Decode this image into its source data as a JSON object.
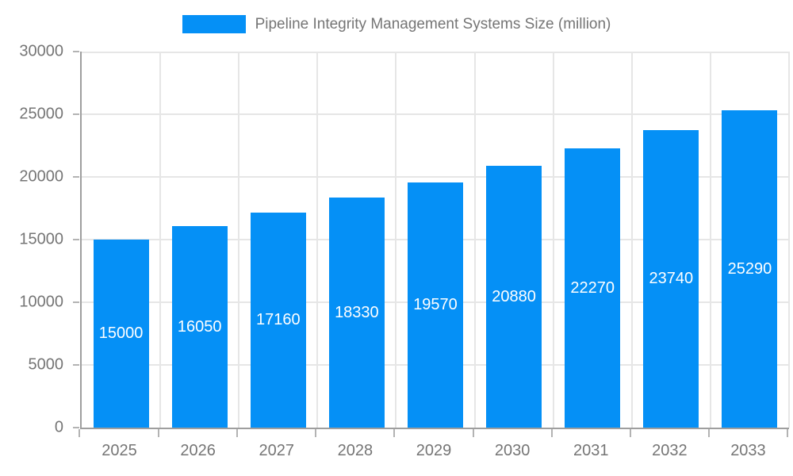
{
  "legend": {
    "label": "Pipeline Integrity Management Systems Size (million)"
  },
  "colors": {
    "bar": "#0590f6",
    "bar_value_text": "#ffffff",
    "axis_text": "#757575",
    "axis_line": "#9e9e9e",
    "tick_mark": "#b3b3b3",
    "gridline": "#e6e6e6",
    "background": "#ffffff"
  },
  "chart_data": {
    "type": "bar",
    "title": "Pipeline Integrity Management Systems Size (million)",
    "categories": [
      "2025",
      "2026",
      "2027",
      "2028",
      "2029",
      "2030",
      "2031",
      "2032",
      "2033"
    ],
    "values": [
      15000,
      16050,
      17160,
      18330,
      19570,
      20880,
      22270,
      23740,
      25290
    ],
    "xlabel": "",
    "ylabel": "",
    "ylim": [
      0,
      30000
    ],
    "yticks": [
      0,
      5000,
      10000,
      15000,
      20000,
      25000,
      30000
    ],
    "grid": true,
    "legend_position": "top-center",
    "value_labels": "inside-center-white"
  }
}
